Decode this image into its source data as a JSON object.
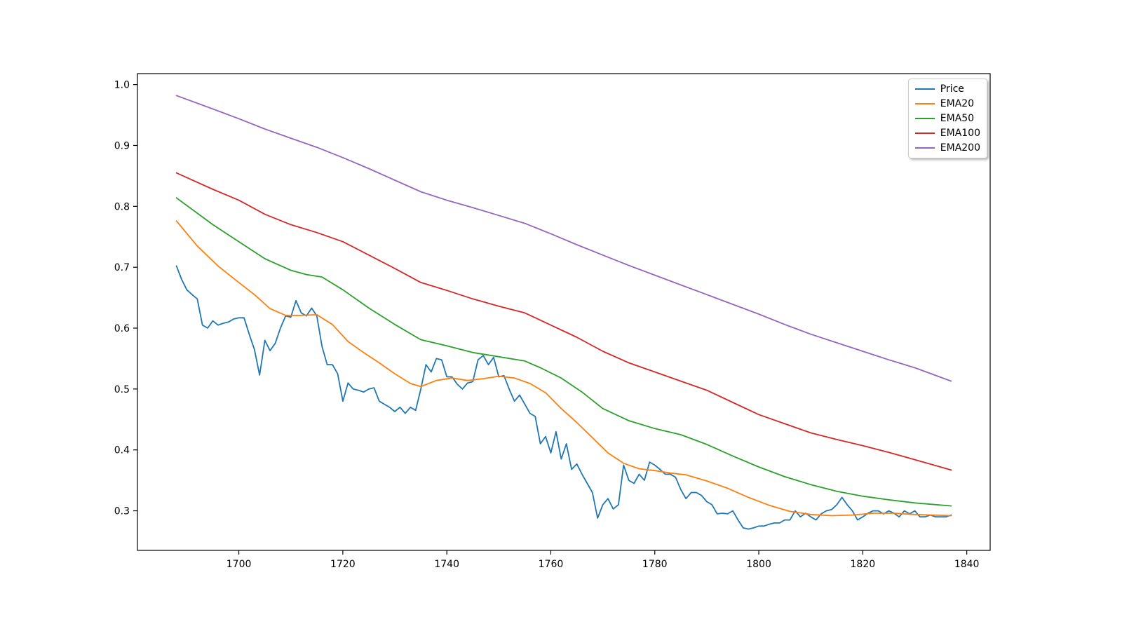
{
  "figure": {
    "background_color": "#ffffff",
    "text_color": "#000000",
    "spine_color": "#000000"
  },
  "chart_data": {
    "type": "line",
    "title": "",
    "xlabel": "",
    "ylabel": "",
    "grid": false,
    "xlim": [
      1680.5,
      1844.5
    ],
    "ylim": [
      0.235,
      1.018
    ],
    "x_ticks": [
      1700,
      1720,
      1740,
      1760,
      1780,
      1800,
      1820,
      1840
    ],
    "y_ticks": [
      0.3,
      0.4,
      0.5,
      0.6,
      0.7,
      0.8,
      0.9,
      1.0
    ],
    "legend": {
      "location": "upper right",
      "frame": true
    },
    "series": [
      {
        "name": "Price",
        "color": "#1f77b4",
        "x_start": 1688,
        "x_step": 1,
        "y": [
          0.702,
          0.68,
          0.663,
          0.655,
          0.648,
          0.605,
          0.6,
          0.612,
          0.605,
          0.608,
          0.61,
          0.615,
          0.617,
          0.617,
          0.59,
          0.565,
          0.523,
          0.58,
          0.563,
          0.575,
          0.6,
          0.62,
          0.618,
          0.645,
          0.625,
          0.62,
          0.633,
          0.62,
          0.57,
          0.54,
          0.54,
          0.525,
          0.48,
          0.51,
          0.5,
          0.498,
          0.495,
          0.5,
          0.502,
          0.48,
          0.475,
          0.47,
          0.463,
          0.47,
          0.46,
          0.47,
          0.465,
          0.5,
          0.54,
          0.528,
          0.55,
          0.548,
          0.52,
          0.52,
          0.508,
          0.5,
          0.51,
          0.512,
          0.548,
          0.555,
          0.54,
          0.552,
          0.52,
          0.522,
          0.5,
          0.48,
          0.49,
          0.475,
          0.46,
          0.455,
          0.41,
          0.422,
          0.395,
          0.43,
          0.385,
          0.41,
          0.368,
          0.377,
          0.36,
          0.345,
          0.33,
          0.288,
          0.31,
          0.32,
          0.303,
          0.31,
          0.375,
          0.35,
          0.345,
          0.36,
          0.35,
          0.38,
          0.375,
          0.368,
          0.36,
          0.36,
          0.355,
          0.335,
          0.32,
          0.33,
          0.33,
          0.325,
          0.315,
          0.31,
          0.295,
          0.296,
          0.295,
          0.3,
          0.285,
          0.272,
          0.27,
          0.272,
          0.275,
          0.275,
          0.278,
          0.28,
          0.28,
          0.285,
          0.285,
          0.3,
          0.29,
          0.296,
          0.29,
          0.285,
          0.295,
          0.3,
          0.302,
          0.31,
          0.322,
          0.31,
          0.3,
          0.285,
          0.29,
          0.296,
          0.3,
          0.3,
          0.295,
          0.3,
          0.296,
          0.29,
          0.3,
          0.295,
          0.3,
          0.29,
          0.29,
          0.293,
          0.29,
          0.29,
          0.29,
          0.293
        ]
      },
      {
        "name": "EMA20",
        "color": "#ff7f0e",
        "x": [
          1688,
          1692,
          1696,
          1700,
          1703,
          1706,
          1709,
          1712,
          1715,
          1718,
          1721,
          1724,
          1727,
          1730,
          1733,
          1735,
          1738,
          1741,
          1744,
          1747,
          1750,
          1753,
          1756,
          1759,
          1762,
          1765,
          1768,
          1771,
          1774,
          1777,
          1780,
          1783,
          1786,
          1790,
          1794,
          1798,
          1802,
          1806,
          1810,
          1814,
          1818,
          1822,
          1826,
          1830,
          1837
        ],
        "y": [
          0.776,
          0.735,
          0.702,
          0.675,
          0.655,
          0.632,
          0.621,
          0.621,
          0.622,
          0.606,
          0.578,
          0.56,
          0.543,
          0.525,
          0.509,
          0.504,
          0.514,
          0.518,
          0.514,
          0.517,
          0.521,
          0.518,
          0.509,
          0.494,
          0.468,
          0.445,
          0.42,
          0.395,
          0.378,
          0.369,
          0.366,
          0.362,
          0.359,
          0.349,
          0.337,
          0.322,
          0.309,
          0.299,
          0.294,
          0.292,
          0.293,
          0.296,
          0.296,
          0.294,
          0.292
        ]
      },
      {
        "name": "EMA50",
        "color": "#2ca02c",
        "x": [
          1688,
          1695,
          1700,
          1705,
          1710,
          1713,
          1716,
          1720,
          1725,
          1730,
          1735,
          1740,
          1745,
          1750,
          1755,
          1758,
          1762,
          1766,
          1770,
          1775,
          1780,
          1785,
          1790,
          1795,
          1800,
          1805,
          1810,
          1815,
          1820,
          1825,
          1830,
          1837
        ],
        "y": [
          0.814,
          0.77,
          0.742,
          0.714,
          0.695,
          0.688,
          0.684,
          0.663,
          0.633,
          0.606,
          0.581,
          0.571,
          0.56,
          0.553,
          0.546,
          0.535,
          0.518,
          0.495,
          0.468,
          0.448,
          0.435,
          0.425,
          0.409,
          0.39,
          0.372,
          0.356,
          0.343,
          0.332,
          0.324,
          0.318,
          0.313,
          0.308
        ]
      },
      {
        "name": "EMA100",
        "color": "#d62728",
        "x": [
          1688,
          1695,
          1700,
          1705,
          1710,
          1715,
          1720,
          1725,
          1730,
          1735,
          1740,
          1745,
          1750,
          1755,
          1760,
          1765,
          1770,
          1775,
          1780,
          1785,
          1790,
          1795,
          1800,
          1805,
          1810,
          1815,
          1820,
          1825,
          1830,
          1837
        ],
        "y": [
          0.855,
          0.828,
          0.81,
          0.787,
          0.77,
          0.757,
          0.742,
          0.72,
          0.698,
          0.675,
          0.662,
          0.648,
          0.636,
          0.625,
          0.605,
          0.585,
          0.562,
          0.543,
          0.528,
          0.513,
          0.498,
          0.478,
          0.458,
          0.443,
          0.428,
          0.417,
          0.407,
          0.396,
          0.384,
          0.367
        ]
      },
      {
        "name": "EMA200",
        "color": "#9467bd",
        "x": [
          1688,
          1695,
          1700,
          1705,
          1710,
          1715,
          1720,
          1725,
          1730,
          1735,
          1740,
          1745,
          1750,
          1755,
          1760,
          1765,
          1770,
          1775,
          1780,
          1785,
          1790,
          1795,
          1800,
          1805,
          1810,
          1815,
          1820,
          1825,
          1830,
          1837
        ],
        "y": [
          0.982,
          0.96,
          0.944,
          0.927,
          0.912,
          0.897,
          0.88,
          0.862,
          0.843,
          0.824,
          0.81,
          0.798,
          0.785,
          0.772,
          0.755,
          0.737,
          0.72,
          0.703,
          0.687,
          0.671,
          0.655,
          0.639,
          0.623,
          0.606,
          0.59,
          0.576,
          0.562,
          0.548,
          0.535,
          0.513
        ]
      }
    ]
  }
}
